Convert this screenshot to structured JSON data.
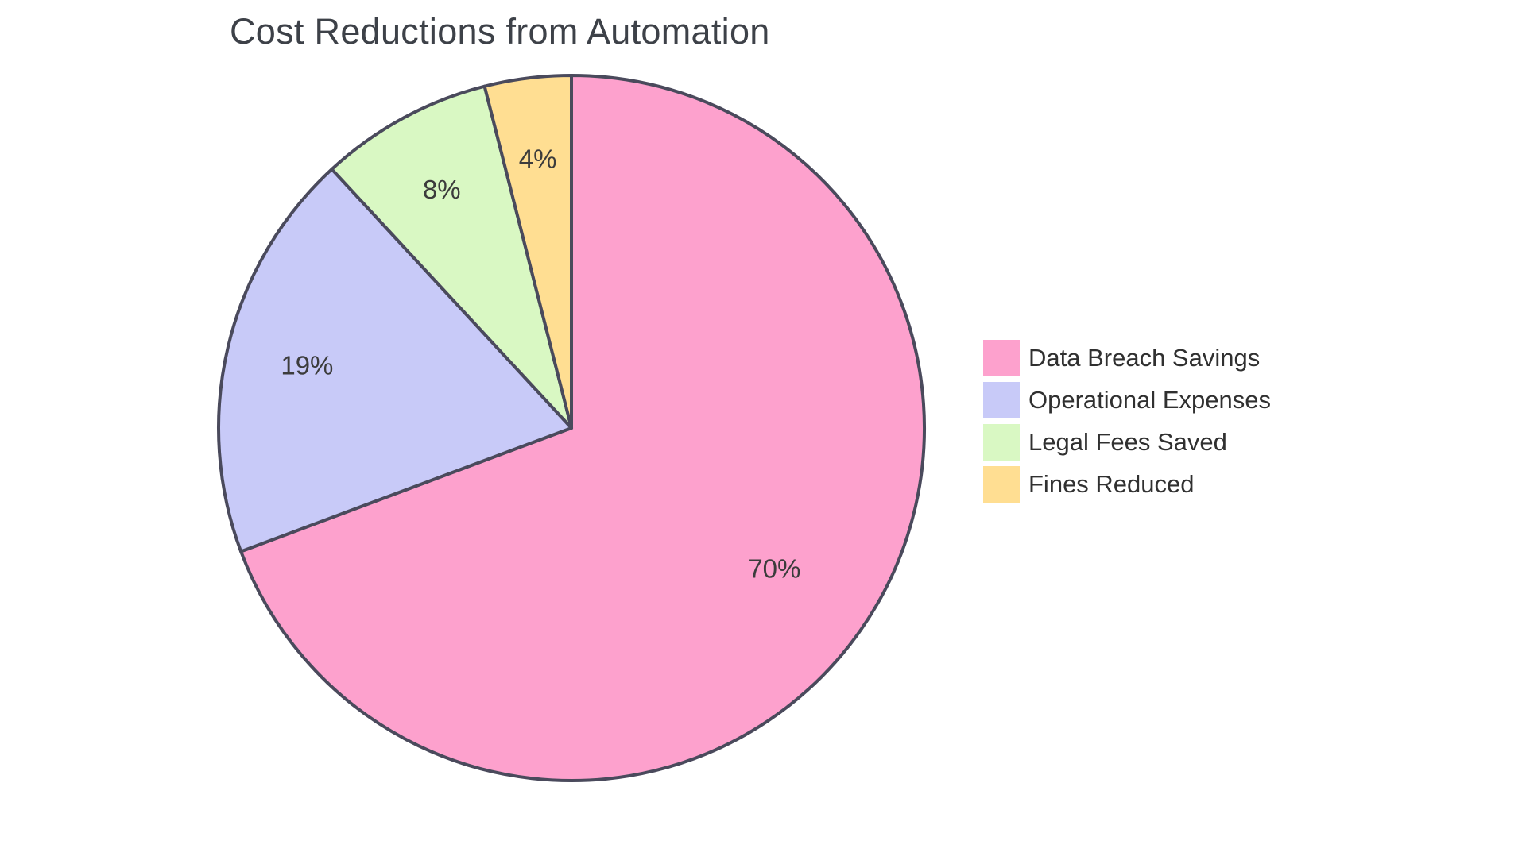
{
  "page": {
    "background_color": "#ffffff"
  },
  "chart_data": {
    "type": "pie",
    "title": "Cost Reductions from Automation",
    "legend_position": "right",
    "start_angle_deg": -90,
    "direction": "clockwise",
    "stroke_color": "#4a4a5c",
    "label_color": "#3c3c3c",
    "title_color": "#3d4148",
    "slices": [
      {
        "label": "Data Breach Savings",
        "value": 70,
        "pct_label": "70%",
        "color": "#fda1cd"
      },
      {
        "label": "Operational Expenses",
        "value": 19,
        "pct_label": "19%",
        "color": "#c8caf8"
      },
      {
        "label": "Legal Fees Saved",
        "value": 8,
        "pct_label": "8%",
        "color": "#d9f8c3"
      },
      {
        "label": "Fines Reduced",
        "value": 4,
        "pct_label": "4%",
        "color": "#ffde92"
      }
    ]
  }
}
